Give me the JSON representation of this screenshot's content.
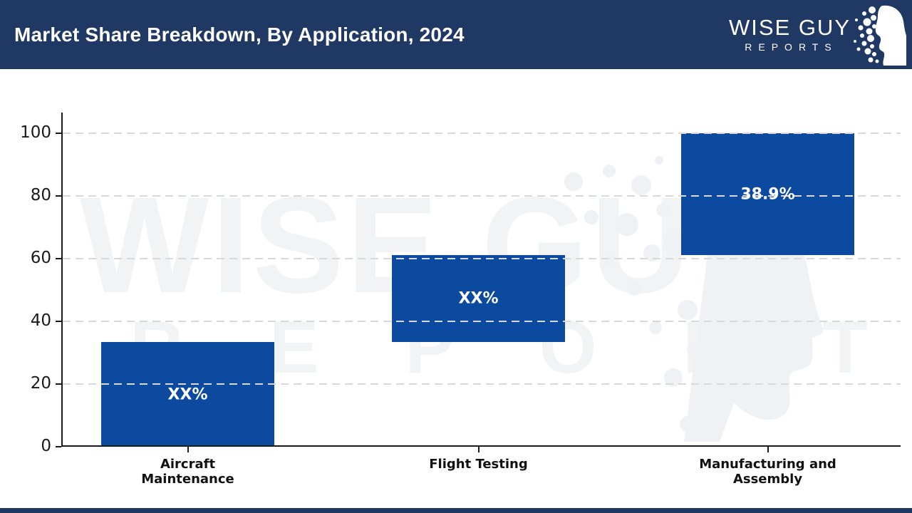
{
  "header": {
    "title": "Market Share Breakdown, By Application, 2024",
    "logo_line1": "WISE GUY",
    "logo_line2": "REPORTS",
    "bg_color": "#1f3864"
  },
  "watermark": {
    "line1": "WISE GUY",
    "line2": "R E P O R T S"
  },
  "chart_data": {
    "type": "bar",
    "subtype": "floating-segment-waterfall",
    "title": "Market Share Breakdown, By Application, 2024",
    "categories": [
      "Aircraft\nMaintenance",
      "Flight Testing",
      "Manufacturing and\nAssembly"
    ],
    "segments": [
      {
        "category": "Aircraft Maintenance",
        "start": 0,
        "end": 33.3,
        "value_label": "XX%"
      },
      {
        "category": "Flight Testing",
        "start": 33.3,
        "end": 61.1,
        "value_label": "XX%"
      },
      {
        "category": "Manufacturing and Assembly",
        "start": 61.1,
        "end": 100,
        "value_label": "38.9%"
      }
    ],
    "xlabel": "",
    "ylabel": "",
    "yticks": [
      0,
      20,
      40,
      60,
      80,
      100
    ],
    "ylim": [
      0,
      106.5
    ],
    "grid": "horizontal-dashed",
    "legend": "none",
    "bar_color": "#0b4a9f",
    "grid_color": "#d9d9d9",
    "axis_color": "#1a1a1a"
  }
}
